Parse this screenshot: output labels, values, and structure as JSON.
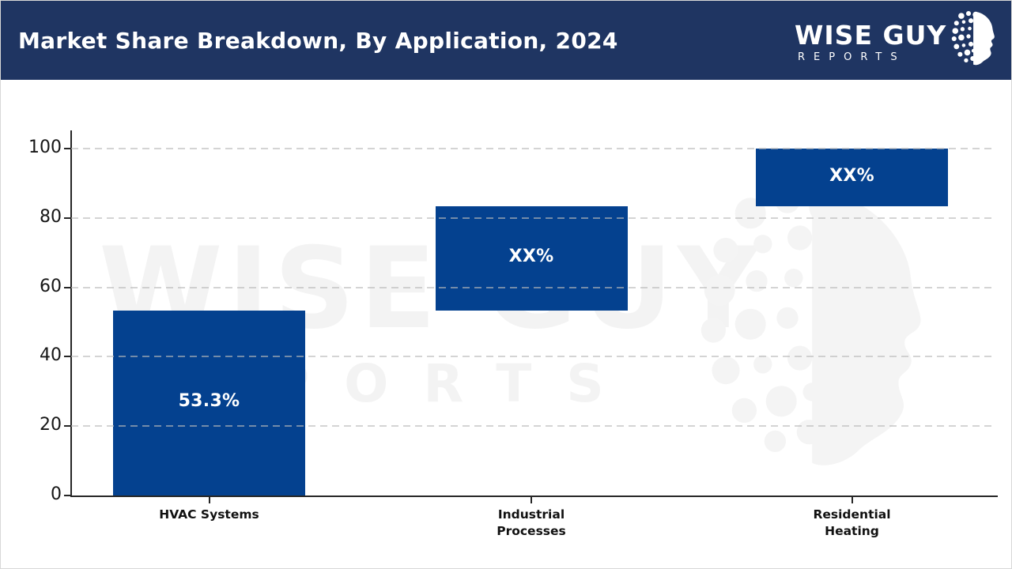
{
  "header": {
    "title": "Market Share Breakdown, By Application, 2024",
    "logo": {
      "line1": "WISE GUY",
      "line2": "REPORTS"
    }
  },
  "watermark": {
    "line1": "WISE GUY",
    "line2": "REPORTS"
  },
  "chart_data": {
    "type": "bar",
    "variant": "stacked-waterfall",
    "title": "Market Share Breakdown, By Application, 2024",
    "categories": [
      "HVAC Systems",
      "Industrial Processes",
      "Residential Heating"
    ],
    "category_label_lines": [
      [
        "HVAC Systems"
      ],
      [
        "Industrial",
        "Processes"
      ],
      [
        "Residential",
        "Heating"
      ]
    ],
    "segments": [
      {
        "category": "HVAC Systems",
        "start": 0,
        "end": 53.3,
        "label": "53.3%"
      },
      {
        "category": "Industrial Processes",
        "start": 53.3,
        "end": 83.3,
        "label": "XX%"
      },
      {
        "category": "Residential Heating",
        "start": 83.3,
        "end": 100,
        "label": "XX%"
      }
    ],
    "yticks": [
      0,
      20,
      40,
      60,
      80,
      100
    ],
    "ylim": [
      0,
      105
    ],
    "grid": {
      "visible": true,
      "style": "dashed",
      "axis": "y"
    },
    "legend": null,
    "colors": {
      "bar": "#04418f",
      "bar_label": "#ffffff",
      "header_bg": "#1f3562",
      "grid": "#d9d9d9",
      "axis": "#262626",
      "watermark": "#f3f3f3"
    }
  }
}
